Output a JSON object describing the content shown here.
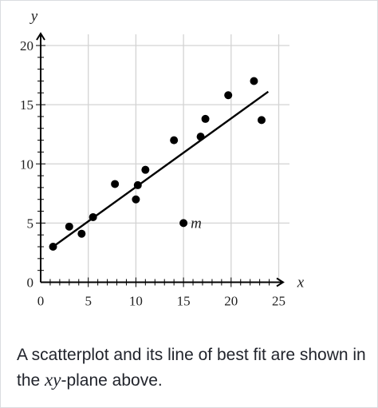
{
  "chart_data": {
    "type": "scatter",
    "title": "",
    "xlabel": "x",
    "ylabel": "y",
    "xlim": [
      0,
      25
    ],
    "ylim": [
      0,
      20
    ],
    "x_ticks": [
      0,
      5,
      10,
      15,
      20,
      25
    ],
    "y_ticks": [
      0,
      5,
      10,
      15,
      20
    ],
    "grid": true,
    "points": [
      {
        "x": 1.3,
        "y": 3.0
      },
      {
        "x": 3.0,
        "y": 4.7
      },
      {
        "x": 4.3,
        "y": 4.1
      },
      {
        "x": 5.5,
        "y": 5.5
      },
      {
        "x": 7.8,
        "y": 8.3
      },
      {
        "x": 10.0,
        "y": 7.0
      },
      {
        "x": 10.2,
        "y": 8.2
      },
      {
        "x": 11.0,
        "y": 9.5
      },
      {
        "x": 14.0,
        "y": 12.0
      },
      {
        "x": 15.0,
        "y": 5.0,
        "label": "m"
      },
      {
        "x": 16.8,
        "y": 12.3
      },
      {
        "x": 17.3,
        "y": 13.8
      },
      {
        "x": 19.7,
        "y": 15.8
      },
      {
        "x": 22.4,
        "y": 17.0
      },
      {
        "x": 23.2,
        "y": 13.7
      }
    ],
    "line_of_best_fit": {
      "x": [
        1.3,
        23.9
      ],
      "y": [
        3.0,
        16.1
      ]
    }
  },
  "caption": {
    "text_before": "A scatterplot and its line of best fit are shown in the ",
    "math": "xy",
    "text_after": "-plane above."
  },
  "colors": {
    "grid": "#d3d3d3",
    "ink": "#000000",
    "caption_text": "#21242c"
  }
}
